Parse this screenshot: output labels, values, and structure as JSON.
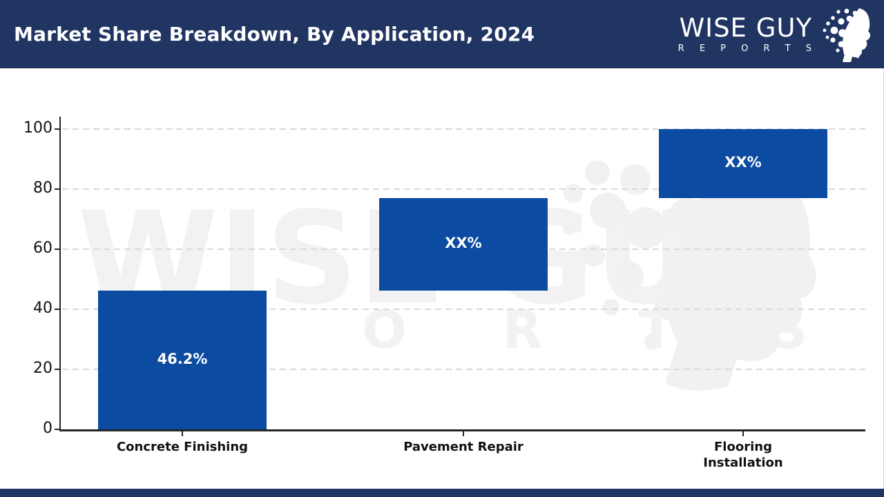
{
  "header": {
    "title": "Market Share Breakdown, By Application, 2024",
    "logo": {
      "line1": "WISE GUY",
      "line2": "R E P O R T S"
    }
  },
  "watermark": {
    "line1": "WISE GUY",
    "line2": "P O R T S"
  },
  "chart_data": {
    "type": "bar",
    "subtype": "waterfall-segmented",
    "title": "Market Share Breakdown, By Application, 2024",
    "categories": [
      "Concrete Finishing",
      "Pavement Repair",
      "Flooring Installation"
    ],
    "bars": [
      {
        "category": "Concrete Finishing",
        "category_display": "Concrete Finishing",
        "start": 0,
        "end": 46.2,
        "label": "46.2%"
      },
      {
        "category": "Pavement Repair",
        "category_display": "Pavement Repair",
        "start": 46.2,
        "end": 77,
        "label": "XX%"
      },
      {
        "category": "Flooring Installation",
        "category_display": "Flooring\nInstallation",
        "start": 77,
        "end": 100,
        "label": "XX%"
      }
    ],
    "ylim": [
      0,
      100
    ],
    "yticks": [
      0,
      20,
      40,
      60,
      80,
      100
    ],
    "xlabel": "",
    "ylabel": "",
    "grid": "horizontal-dashed",
    "legend": "none",
    "bar_color": "#0b4ba1"
  },
  "colors": {
    "header_bg": "#213563",
    "footer_bg": "#213563",
    "bar": "#0b4ba1",
    "axis": "#262626",
    "gridline": "#d8d8d8",
    "watermark": "#f2f2f4"
  }
}
